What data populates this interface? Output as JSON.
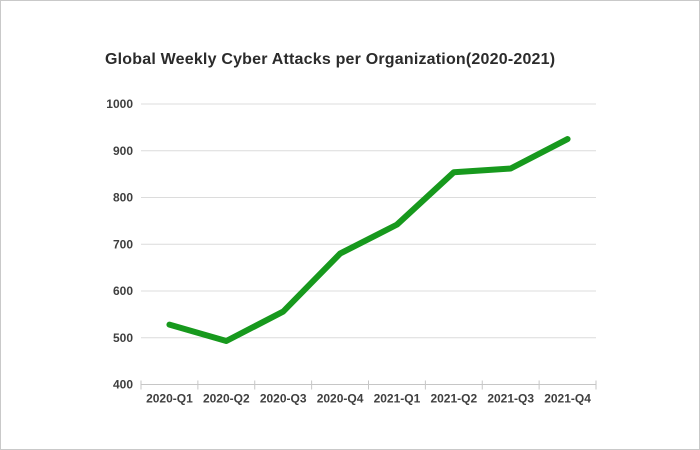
{
  "window": {
    "background": "#ffffff",
    "border_color": "#c9c9c9"
  },
  "chart_data": {
    "type": "line",
    "title": "Global Weekly Cyber Attacks per Organization(2020-2021)",
    "categories": [
      "2020-Q1",
      "2020-Q2",
      "2020-Q3",
      "2020-Q4",
      "2021-Q1",
      "2021-Q2",
      "2021-Q3",
      "2021-Q4"
    ],
    "values": [
      528,
      493,
      556,
      680,
      742,
      854,
      862,
      925
    ],
    "xlabel": "",
    "ylabel": "",
    "ylim": [
      400,
      1000
    ],
    "yticks": [
      400,
      500,
      600,
      700,
      800,
      900,
      1000
    ],
    "grid": "horizontal",
    "legend": "none",
    "colors": {
      "line": "#17991d",
      "gridline": "#dcdcdc",
      "axis": "#c6c6c6",
      "tick_label": "#3f3f3f",
      "title": "#2b2b2b"
    }
  }
}
